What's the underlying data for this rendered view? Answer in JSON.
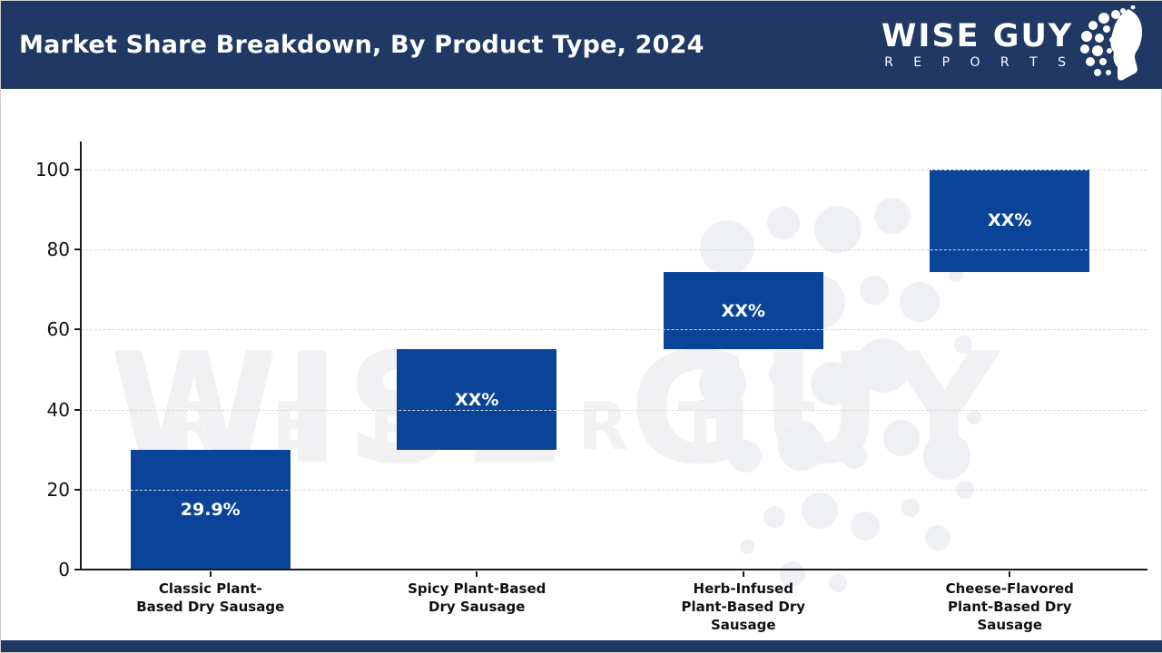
{
  "header": {
    "title": "Market Share Breakdown, By Product Type, 2024",
    "background_color": "#1f3864",
    "logo": {
      "line1": "WISE GUY",
      "line2": "R E P O R T S"
    }
  },
  "watermark": {
    "line1": "WISE GUY",
    "line2": "REPORTS"
  },
  "footer": {
    "background_color": "#1f3864"
  },
  "chart_data": {
    "type": "bar",
    "variant": "waterfall",
    "title": "Market Share Breakdown, By Product Type, 2024",
    "categories": [
      "Classic Plant-\nBased Dry Sausage",
      "Spicy Plant-Based\nDry Sausage",
      "Herb-Infused\nPlant-Based Dry\nSausage",
      "Cheese-Flavored\nPlant-Based Dry\nSausage"
    ],
    "series": [
      {
        "name": "Market Share",
        "segments": [
          {
            "start": 0,
            "end": 29.9,
            "label": "29.9%"
          },
          {
            "start": 29.9,
            "end": 55.0,
            "label": "XX%"
          },
          {
            "start": 55.0,
            "end": 74.4,
            "label": "XX%"
          },
          {
            "start": 74.4,
            "end": 100,
            "label": "XX%"
          }
        ]
      }
    ],
    "xlabel": "",
    "ylabel": "",
    "ylim": [
      0,
      107
    ],
    "yticks": [
      0,
      20,
      40,
      60,
      80,
      100
    ],
    "grid": "horizontal-dashed, drawn over bars",
    "legend": "none",
    "bar_color": "#0a4499",
    "bar_label_color": "#ffffff"
  }
}
